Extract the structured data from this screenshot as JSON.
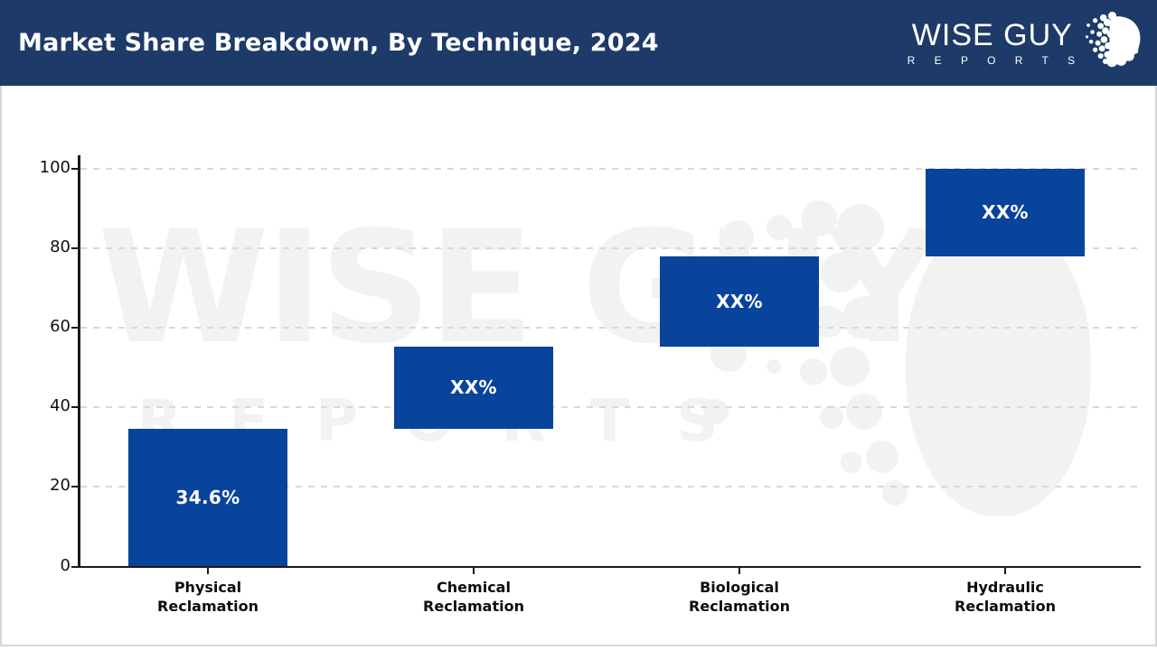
{
  "header": {
    "title": "Market Share Breakdown, By Technique, 2024",
    "brand_line1": "WISE GUY",
    "brand_line2": "R E P O R T S"
  },
  "watermark": {
    "line1": "WISE GUY",
    "line2": "REPORTS"
  },
  "colors": {
    "header_bg": "#1e3a68",
    "bar_fill": "#08439c",
    "grid_line": "#d8d8d8",
    "axis_line": "#1a1a1a",
    "bar_label": "#ffffff",
    "tick_label": "#111111",
    "watermark_text": "#f2f2f2"
  },
  "chart_data": {
    "type": "bar",
    "subtype": "waterfall",
    "title": "Market Share Breakdown, By Technique, 2024",
    "categories": [
      [
        "Physical",
        "Reclamation"
      ],
      [
        "Chemical",
        "Reclamation"
      ],
      [
        "Biological",
        "Reclamation"
      ],
      [
        "Hydraulic",
        "Reclamation"
      ]
    ],
    "segments": [
      {
        "base": 0,
        "top": 34.6,
        "label": "34.6%"
      },
      {
        "base": 34.6,
        "top": 55.3,
        "label": "XX%"
      },
      {
        "base": 55.3,
        "top": 78.0,
        "label": "XX%"
      },
      {
        "base": 78.0,
        "top": 100.0,
        "label": "XX%"
      }
    ],
    "ylim": [
      0,
      100
    ],
    "yticks": [
      0,
      20,
      40,
      60,
      80,
      100
    ],
    "grid": true,
    "legend": false
  }
}
